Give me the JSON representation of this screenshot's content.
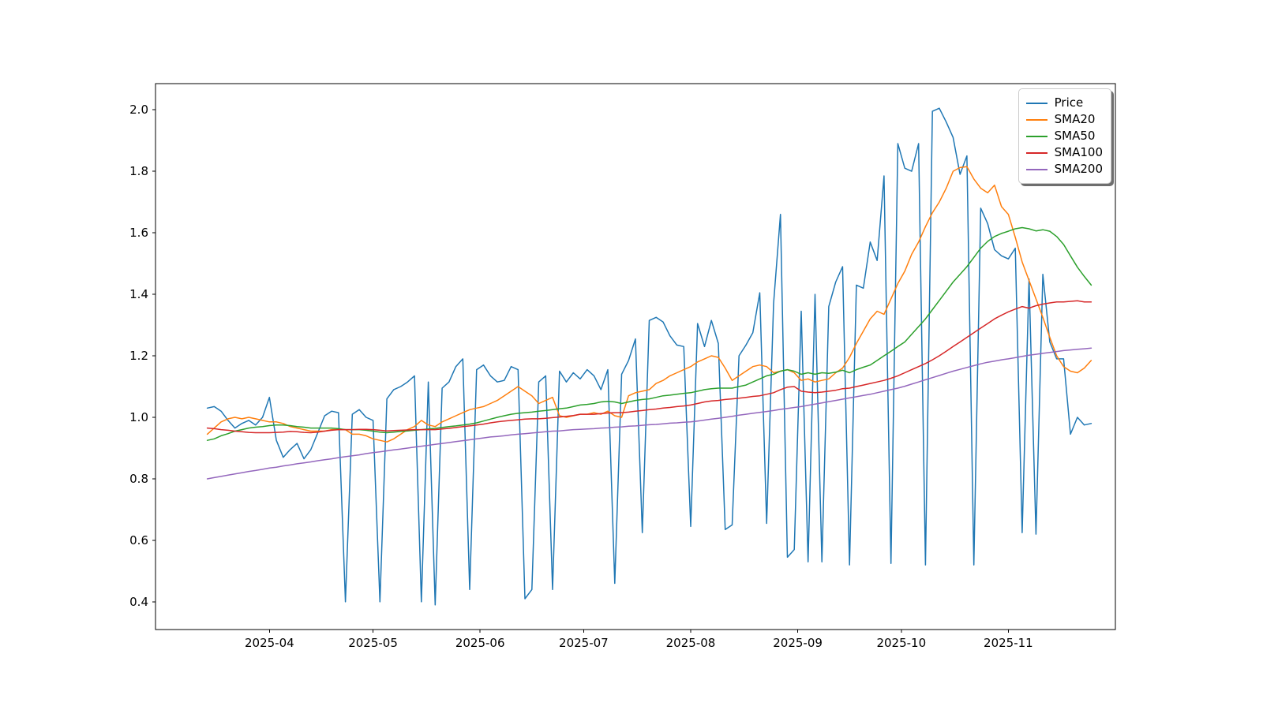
{
  "chart_data": {
    "type": "line",
    "title": "",
    "xlabel": "",
    "ylabel": "",
    "grid": false,
    "legend": {
      "location": "upper right"
    },
    "ylim": [
      0.31,
      2.085
    ],
    "xlim": [
      "2025-02-27",
      "2025-12-02"
    ],
    "yticks": [
      0.4,
      0.6,
      0.8,
      1.0,
      1.2,
      1.4,
      1.6,
      1.8,
      2.0
    ],
    "yticklabels": [
      "0.4",
      "0.6",
      "0.8",
      "1.0",
      "1.2",
      "1.4",
      "1.6",
      "1.8",
      "2.0"
    ],
    "xticks": [
      {
        "label": "2025-04",
        "date": "2025-04-01"
      },
      {
        "label": "2025-05",
        "date": "2025-05-01"
      },
      {
        "label": "2025-06",
        "date": "2025-06-01"
      },
      {
        "label": "2025-07",
        "date": "2025-07-01"
      },
      {
        "label": "2025-08",
        "date": "2025-08-01"
      },
      {
        "label": "2025-09",
        "date": "2025-09-01"
      },
      {
        "label": "2025-10",
        "date": "2025-10-01"
      },
      {
        "label": "2025-11",
        "date": "2025-11-01"
      }
    ],
    "x_dates": [
      "2025-03-14",
      "2025-03-16",
      "2025-03-18",
      "2025-03-20",
      "2025-03-22",
      "2025-03-24",
      "2025-03-26",
      "2025-03-28",
      "2025-03-30",
      "2025-04-01",
      "2025-04-03",
      "2025-04-05",
      "2025-04-07",
      "2025-04-09",
      "2025-04-11",
      "2025-04-13",
      "2025-04-15",
      "2025-04-17",
      "2025-04-19",
      "2025-04-21",
      "2025-04-23",
      "2025-04-25",
      "2025-04-27",
      "2025-04-29",
      "2025-05-01",
      "2025-05-03",
      "2025-05-05",
      "2025-05-07",
      "2025-05-09",
      "2025-05-11",
      "2025-05-13",
      "2025-05-15",
      "2025-05-17",
      "2025-05-19",
      "2025-05-21",
      "2025-05-23",
      "2025-05-25",
      "2025-05-27",
      "2025-05-29",
      "2025-05-31",
      "2025-06-02",
      "2025-06-04",
      "2025-06-06",
      "2025-06-08",
      "2025-06-10",
      "2025-06-12",
      "2025-06-14",
      "2025-06-16",
      "2025-06-18",
      "2025-06-20",
      "2025-06-22",
      "2025-06-24",
      "2025-06-26",
      "2025-06-28",
      "2025-06-30",
      "2025-07-02",
      "2025-07-04",
      "2025-07-06",
      "2025-07-08",
      "2025-07-10",
      "2025-07-12",
      "2025-07-14",
      "2025-07-16",
      "2025-07-18",
      "2025-07-20",
      "2025-07-22",
      "2025-07-24",
      "2025-07-26",
      "2025-07-28",
      "2025-07-30",
      "2025-08-01",
      "2025-08-03",
      "2025-08-05",
      "2025-08-07",
      "2025-08-09",
      "2025-08-11",
      "2025-08-13",
      "2025-08-15",
      "2025-08-17",
      "2025-08-19",
      "2025-08-21",
      "2025-08-23",
      "2025-08-25",
      "2025-08-27",
      "2025-08-29",
      "2025-08-31",
      "2025-09-02",
      "2025-09-04",
      "2025-09-06",
      "2025-09-08",
      "2025-09-10",
      "2025-09-12",
      "2025-09-14",
      "2025-09-16",
      "2025-09-18",
      "2025-09-20",
      "2025-09-22",
      "2025-09-24",
      "2025-09-26",
      "2025-09-28",
      "2025-09-30",
      "2025-10-02",
      "2025-10-04",
      "2025-10-06",
      "2025-10-08",
      "2025-10-10",
      "2025-10-12",
      "2025-10-14",
      "2025-10-16",
      "2025-10-18",
      "2025-10-20",
      "2025-10-22",
      "2025-10-24",
      "2025-10-26",
      "2025-10-28",
      "2025-10-30",
      "2025-11-01",
      "2025-11-03",
      "2025-11-05",
      "2025-11-07",
      "2025-11-09",
      "2025-11-11",
      "2025-11-13",
      "2025-11-15",
      "2025-11-17",
      "2025-11-19",
      "2025-11-21",
      "2025-11-23",
      "2025-11-25"
    ],
    "series": [
      {
        "name": "Price",
        "color": "#1f77b4",
        "values": [
          1.03,
          1.035,
          1.02,
          0.99,
          0.965,
          0.98,
          0.99,
          0.975,
          1.0,
          1.065,
          0.925,
          0.87,
          0.895,
          0.915,
          0.865,
          0.895,
          0.95,
          1.005,
          1.02,
          1.015,
          0.4,
          1.01,
          1.025,
          1.0,
          0.99,
          0.4,
          1.06,
          1.09,
          1.1,
          1.115,
          1.135,
          0.4,
          1.115,
          0.39,
          1.095,
          1.115,
          1.165,
          1.19,
          0.44,
          1.155,
          1.17,
          1.135,
          1.115,
          1.12,
          1.165,
          1.155,
          0.41,
          0.44,
          1.115,
          1.135,
          0.44,
          1.15,
          1.115,
          1.145,
          1.125,
          1.155,
          1.135,
          1.09,
          1.155,
          0.46,
          1.14,
          1.185,
          1.255,
          0.625,
          1.315,
          1.325,
          1.31,
          1.265,
          1.235,
          1.23,
          0.645,
          1.305,
          1.23,
          1.315,
          1.24,
          0.635,
          0.65,
          1.2,
          1.235,
          1.275,
          1.405,
          0.655,
          1.37,
          1.66,
          0.545,
          0.57,
          1.345,
          0.53,
          1.4,
          0.53,
          1.36,
          1.44,
          1.49,
          0.52,
          1.43,
          1.42,
          1.57,
          1.51,
          1.785,
          0.525,
          1.89,
          1.81,
          1.8,
          1.89,
          0.52,
          1.995,
          2.005,
          1.96,
          1.91,
          1.79,
          1.85,
          0.52,
          1.68,
          1.63,
          1.545,
          1.525,
          1.515,
          1.55,
          0.625,
          1.45,
          0.62,
          1.465,
          1.245,
          1.19,
          1.19,
          0.945,
          1.0,
          0.975,
          0.98
        ]
      },
      {
        "name": "SMA20",
        "color": "#ff7f0e",
        "values": [
          0.945,
          0.965,
          0.985,
          0.995,
          1.0,
          0.995,
          1.0,
          0.995,
          0.99,
          0.985,
          0.985,
          0.98,
          0.97,
          0.965,
          0.96,
          0.955,
          0.955,
          0.955,
          0.96,
          0.96,
          0.96,
          0.945,
          0.945,
          0.94,
          0.93,
          0.925,
          0.92,
          0.93,
          0.945,
          0.96,
          0.97,
          0.99,
          0.975,
          0.97,
          0.985,
          0.995,
          1.005,
          1.015,
          1.025,
          1.03,
          1.035,
          1.045,
          1.055,
          1.07,
          1.085,
          1.1,
          1.085,
          1.07,
          1.045,
          1.055,
          1.065,
          1.005,
          1.0,
          1.005,
          1.01,
          1.01,
          1.015,
          1.01,
          1.02,
          1.005,
          1.0,
          1.07,
          1.08,
          1.085,
          1.09,
          1.11,
          1.12,
          1.135,
          1.145,
          1.155,
          1.165,
          1.18,
          1.19,
          1.2,
          1.195,
          1.16,
          1.12,
          1.135,
          1.15,
          1.165,
          1.17,
          1.165,
          1.145,
          1.15,
          1.155,
          1.145,
          1.12,
          1.125,
          1.115,
          1.12,
          1.125,
          1.145,
          1.16,
          1.195,
          1.24,
          1.28,
          1.32,
          1.345,
          1.335,
          1.385,
          1.435,
          1.475,
          1.53,
          1.57,
          1.62,
          1.665,
          1.7,
          1.745,
          1.8,
          1.812,
          1.815,
          1.775,
          1.745,
          1.73,
          1.755,
          1.685,
          1.66,
          1.585,
          1.505,
          1.445,
          1.385,
          1.325,
          1.26,
          1.2,
          1.165,
          1.15,
          1.145,
          1.16,
          1.185
        ]
      },
      {
        "name": "SMA50",
        "color": "#2ca02c",
        "values": [
          0.925,
          0.93,
          0.94,
          0.947,
          0.955,
          0.96,
          0.965,
          0.968,
          0.97,
          0.973,
          0.975,
          0.975,
          0.973,
          0.97,
          0.968,
          0.965,
          0.965,
          0.965,
          0.965,
          0.963,
          0.96,
          0.96,
          0.96,
          0.958,
          0.955,
          0.952,
          0.95,
          0.952,
          0.954,
          0.956,
          0.958,
          0.96,
          0.962,
          0.964,
          0.967,
          0.97,
          0.972,
          0.975,
          0.978,
          0.982,
          0.988,
          0.994,
          1.0,
          1.005,
          1.01,
          1.013,
          1.015,
          1.017,
          1.02,
          1.022,
          1.025,
          1.028,
          1.03,
          1.035,
          1.04,
          1.042,
          1.045,
          1.05,
          1.052,
          1.05,
          1.045,
          1.05,
          1.055,
          1.058,
          1.06,
          1.065,
          1.07,
          1.072,
          1.075,
          1.078,
          1.08,
          1.085,
          1.09,
          1.093,
          1.095,
          1.095,
          1.095,
          1.1,
          1.105,
          1.115,
          1.125,
          1.135,
          1.14,
          1.15,
          1.155,
          1.15,
          1.14,
          1.145,
          1.14,
          1.145,
          1.143,
          1.147,
          1.153,
          1.145,
          1.155,
          1.163,
          1.17,
          1.185,
          1.2,
          1.215,
          1.23,
          1.245,
          1.27,
          1.295,
          1.32,
          1.35,
          1.38,
          1.41,
          1.44,
          1.465,
          1.49,
          1.52,
          1.55,
          1.572,
          1.588,
          1.598,
          1.605,
          1.613,
          1.617,
          1.613,
          1.606,
          1.61,
          1.605,
          1.588,
          1.562,
          1.525,
          1.488,
          1.458,
          1.43
        ]
      },
      {
        "name": "SMA100",
        "color": "#d62728",
        "values": [
          0.965,
          0.963,
          0.96,
          0.958,
          0.955,
          0.953,
          0.951,
          0.95,
          0.95,
          0.95,
          0.951,
          0.952,
          0.954,
          0.953,
          0.951,
          0.95,
          0.952,
          0.955,
          0.958,
          0.96,
          0.96,
          0.96,
          0.961,
          0.961,
          0.96,
          0.958,
          0.956,
          0.957,
          0.958,
          0.959,
          0.96,
          0.96,
          0.96,
          0.96,
          0.962,
          0.964,
          0.967,
          0.97,
          0.972,
          0.975,
          0.978,
          0.982,
          0.985,
          0.988,
          0.99,
          0.992,
          0.994,
          0.995,
          0.995,
          0.997,
          0.999,
          1.001,
          1.003,
          1.006,
          1.01,
          1.01,
          1.01,
          1.012,
          1.014,
          1.015,
          1.015,
          1.017,
          1.02,
          1.022,
          1.025,
          1.027,
          1.03,
          1.032,
          1.035,
          1.037,
          1.04,
          1.045,
          1.05,
          1.053,
          1.055,
          1.058,
          1.06,
          1.062,
          1.065,
          1.068,
          1.07,
          1.075,
          1.08,
          1.09,
          1.098,
          1.1,
          1.085,
          1.082,
          1.08,
          1.082,
          1.085,
          1.088,
          1.093,
          1.095,
          1.1,
          1.105,
          1.11,
          1.115,
          1.12,
          1.127,
          1.135,
          1.145,
          1.155,
          1.165,
          1.175,
          1.187,
          1.2,
          1.215,
          1.23,
          1.245,
          1.26,
          1.275,
          1.29,
          1.305,
          1.32,
          1.332,
          1.343,
          1.352,
          1.36,
          1.355,
          1.363,
          1.368,
          1.372,
          1.375,
          1.375,
          1.377,
          1.379,
          1.375,
          1.375
        ]
      },
      {
        "name": "SMA200",
        "color": "#9467bd",
        "values": [
          0.8,
          0.804,
          0.808,
          0.812,
          0.816,
          0.82,
          0.824,
          0.827,
          0.831,
          0.835,
          0.838,
          0.842,
          0.845,
          0.849,
          0.852,
          0.855,
          0.859,
          0.862,
          0.865,
          0.869,
          0.872,
          0.875,
          0.878,
          0.882,
          0.885,
          0.888,
          0.891,
          0.894,
          0.897,
          0.9,
          0.903,
          0.906,
          0.909,
          0.912,
          0.915,
          0.918,
          0.921,
          0.924,
          0.927,
          0.93,
          0.933,
          0.936,
          0.938,
          0.94,
          0.943,
          0.945,
          0.947,
          0.949,
          0.951,
          0.953,
          0.955,
          0.956,
          0.958,
          0.96,
          0.961,
          0.962,
          0.963,
          0.965,
          0.966,
          0.968,
          0.969,
          0.971,
          0.972,
          0.974,
          0.976,
          0.977,
          0.979,
          0.981,
          0.982,
          0.984,
          0.985,
          0.988,
          0.991,
          0.994,
          0.997,
          1.0,
          1.003,
          1.007,
          1.01,
          1.013,
          1.016,
          1.019,
          1.022,
          1.026,
          1.029,
          1.032,
          1.035,
          1.039,
          1.043,
          1.047,
          1.051,
          1.055,
          1.059,
          1.063,
          1.067,
          1.071,
          1.075,
          1.08,
          1.085,
          1.09,
          1.095,
          1.101,
          1.108,
          1.115,
          1.122,
          1.129,
          1.136,
          1.143,
          1.15,
          1.156,
          1.162,
          1.168,
          1.174,
          1.179,
          1.183,
          1.187,
          1.19,
          1.194,
          1.198,
          1.202,
          1.205,
          1.208,
          1.211,
          1.214,
          1.217,
          1.219,
          1.221,
          1.223,
          1.225
        ]
      }
    ]
  }
}
